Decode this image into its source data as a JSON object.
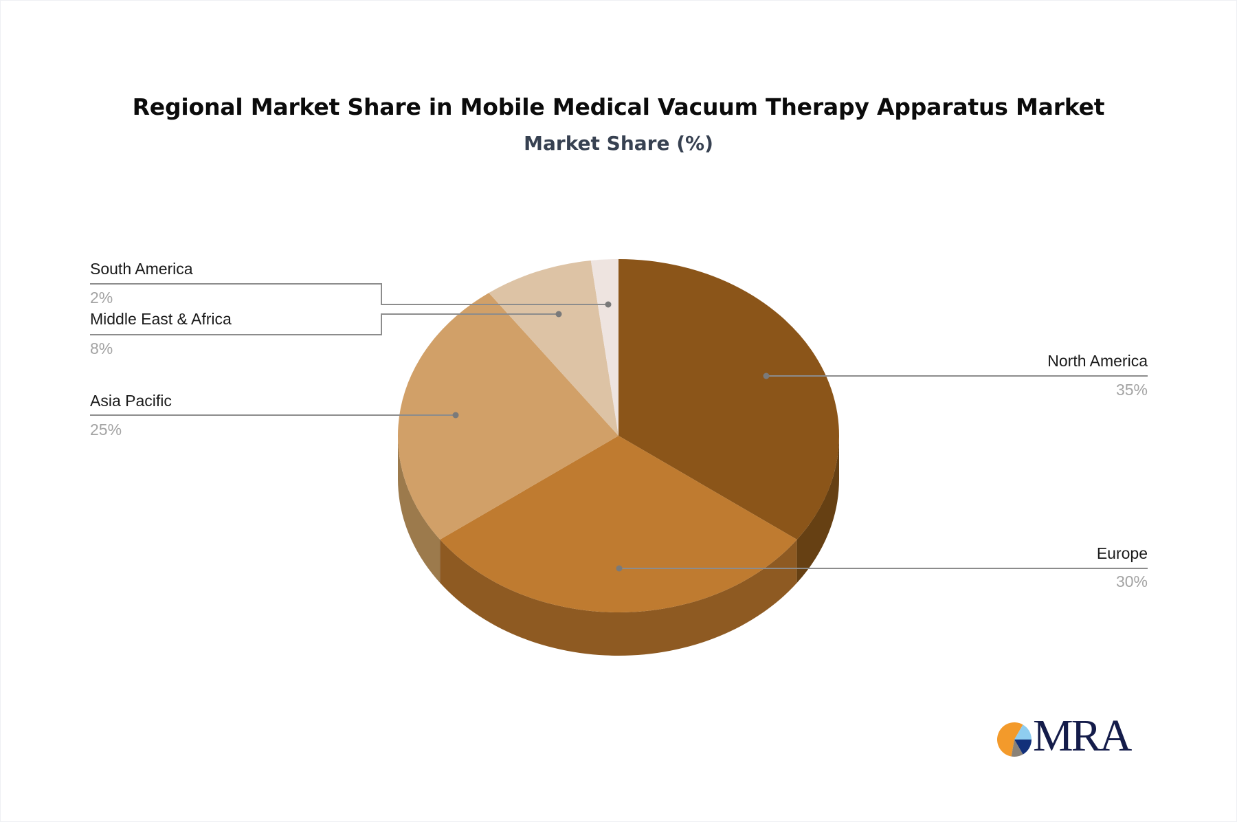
{
  "header": {
    "title": "Regional Market Share in Mobile Medical Vacuum Therapy Apparatus Market",
    "subtitle": "Market Share (%)"
  },
  "logo": {
    "text": "MRA",
    "colors": {
      "orange": "#F39A2B",
      "light_blue": "#8FCDF0",
      "navy": "#12307A",
      "gray": "#8A8278",
      "text": "#141C4A"
    }
  },
  "chart_data": {
    "type": "pie",
    "style": "3d",
    "title": "Regional Market Share in Mobile Medical Vacuum Therapy Apparatus Market",
    "subtitle": "Market Share (%)",
    "unit": "%",
    "start_angle_deg": -90,
    "direction": "clockwise",
    "categories": [
      "North America",
      "Europe",
      "Asia Pacific",
      "Middle East & Africa",
      "South America"
    ],
    "values": [
      35,
      30,
      25,
      8,
      2
    ],
    "labels": [
      "35%",
      "30%",
      "25%",
      "8%",
      "2%"
    ],
    "colors": [
      "#8B5519",
      "#BF7B30",
      "#D1A068",
      "#DDC3A5",
      "#EEE4E0"
    ],
    "side_colors": [
      "#664013",
      "#8E5A22",
      "#9C7A4C",
      "#A8927A",
      "#B4AAA6"
    ],
    "legend": "callout-labels"
  },
  "callouts": [
    {
      "name": "North America",
      "pct": "35%",
      "side": "right"
    },
    {
      "name": "Europe",
      "pct": "30%",
      "side": "right"
    },
    {
      "name": "Asia Pacific",
      "pct": "25%",
      "side": "left"
    },
    {
      "name": "Middle East & Africa",
      "pct": "8%",
      "side": "left"
    },
    {
      "name": "South America",
      "pct": "2%",
      "side": "left"
    }
  ]
}
